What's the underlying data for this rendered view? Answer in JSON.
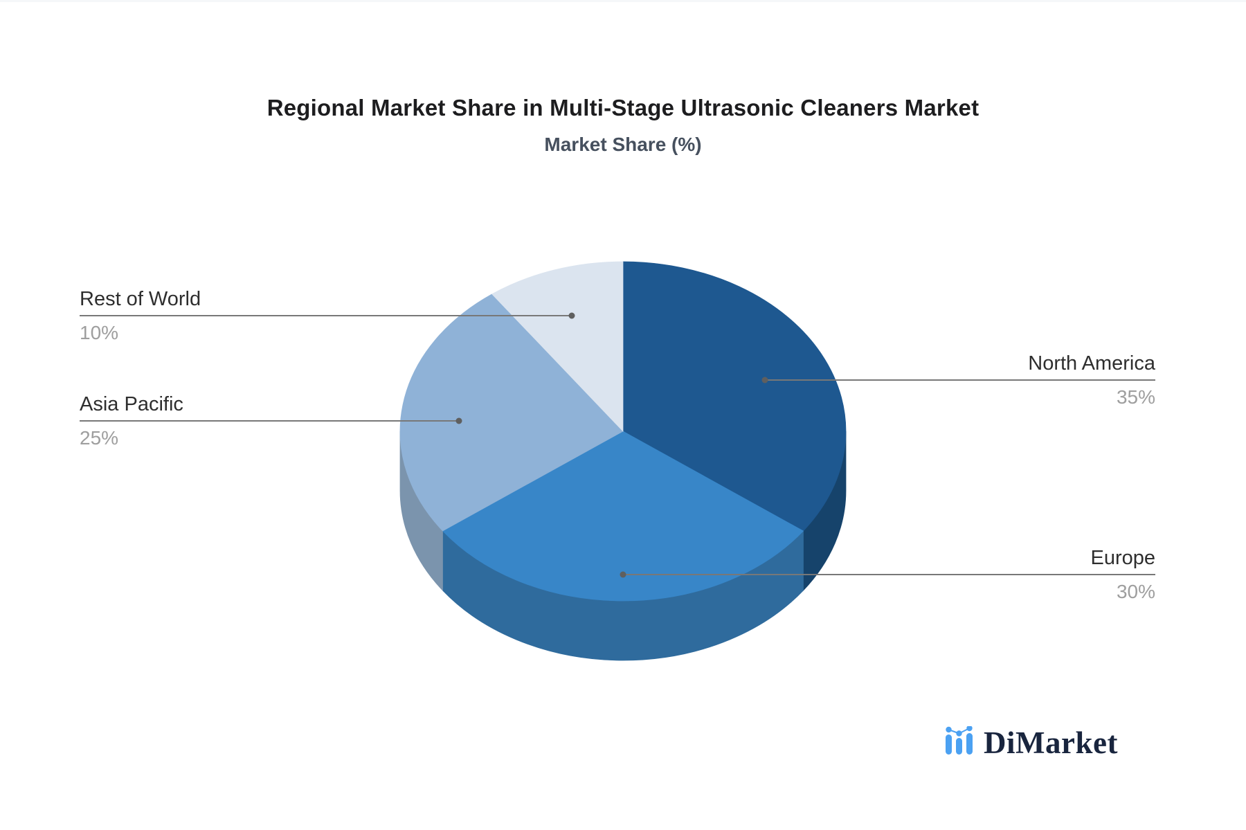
{
  "title": "Regional Market Share in Multi-Stage Ultrasonic Cleaners Market",
  "subtitle": "Market Share (%)",
  "brand": {
    "name": "DiMarket",
    "icon": "bar-chart-logo-icon",
    "icon_color": "#4ba1f2",
    "text_color": "#19253e"
  },
  "colors": {
    "background": "#ffffff",
    "title": "#1d1d1f",
    "subtitle": "#46505e",
    "label_name": "#2e2e2e",
    "label_pct": "#9e9e9e",
    "leader_line": "#787878",
    "leader_dot": "#5f5f5f"
  },
  "chart_data": {
    "type": "pie",
    "style": "3d",
    "title": "Regional Market Share in Multi-Stage Ultrasonic Cleaners Market",
    "subtitle": "Market Share (%)",
    "unit": "%",
    "start_angle_deg": 0,
    "direction": "clockwise",
    "legend_position": "none",
    "label_style": "callout-lines",
    "slices": [
      {
        "label": "North America",
        "value": 35,
        "pct_label": "35%",
        "color": "#1e5890",
        "side_color": "#16436b",
        "label_side": "right"
      },
      {
        "label": "Europe",
        "value": 30,
        "pct_label": "30%",
        "color": "#3886c8",
        "side_color": "#2f6b9d",
        "label_side": "right"
      },
      {
        "label": "Asia Pacific",
        "value": 25,
        "pct_label": "25%",
        "color": "#8fb2d7",
        "side_color": "#7b94ad",
        "label_side": "left"
      },
      {
        "label": "Rest of World",
        "value": 10,
        "pct_label": "10%",
        "color": "#dbe4ef",
        "side_color": "#b9c6d6",
        "label_side": "left"
      }
    ]
  }
}
